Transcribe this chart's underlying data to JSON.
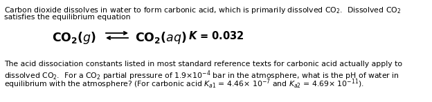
{
  "background_color": "#ffffff",
  "text_color": "#000000",
  "line1": "Carbon dioxide dissolves in water to form carbonic acid, which is primarily dissolved CO$_2$.  Dissolved CO$_2$",
  "line2": "satisfies the equilibrium equation",
  "para2_line1": "The acid dissociation constants listed in most standard reference texts for carbonic acid actually apply to",
  "para2_line2": "dissolved CO$_2$.  For a CO$_2$ partial pressure of 1.9×10$^{-4}$ bar in the atmosphere, what is the pH of water in",
  "para2_line3": "equilibrium with the atmosphere? (For carbonic acid $K_{a1}$ = 4.46× 10$^{-7}$ and $K_{a2}$ = 4.69× 10$^{-11}$).",
  "font_size_body": 7.8,
  "font_size_eq": 12.5,
  "font_size_K": 10.5,
  "fig_width": 6.24,
  "fig_height": 1.48,
  "dpi": 100
}
